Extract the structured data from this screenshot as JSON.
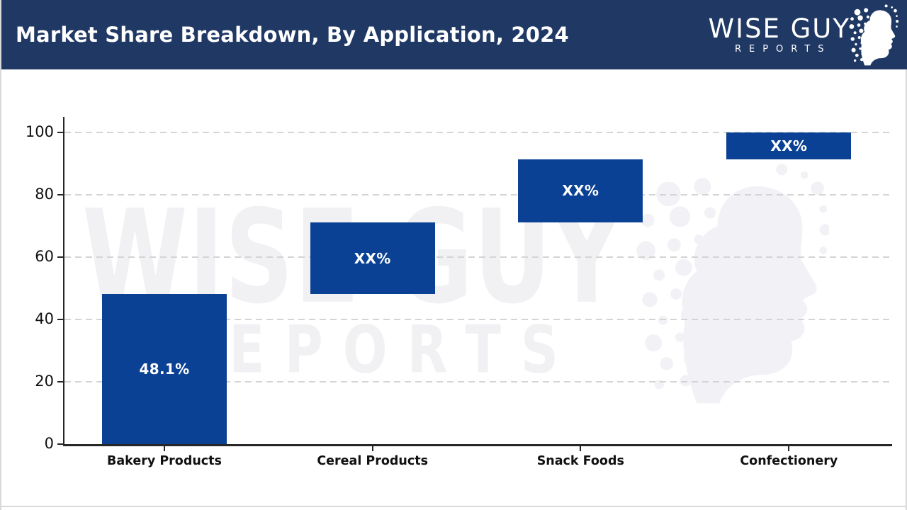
{
  "header": {
    "title": "Market Share Breakdown, By Application, 2024",
    "logo": {
      "line1": "WISE GUY",
      "line2": "REPORTS"
    }
  },
  "watermark": {
    "line1": "WISE GUY",
    "line2": "REPORTS"
  },
  "chart_data": {
    "type": "waterfall",
    "title": "Market Share Breakdown, By Application, 2024",
    "categories": [
      "Bakery Products",
      "Cereal Products",
      "Snack Foods",
      "Confectionery"
    ],
    "segments": [
      {
        "category": "Bakery Products",
        "start": 0,
        "end": 48.1,
        "label": "48.1%"
      },
      {
        "category": "Cereal Products",
        "start": 48.1,
        "end": 71.2,
        "label": "XX%"
      },
      {
        "category": "Snack Foods",
        "start": 71.2,
        "end": 91.4,
        "label": "XX%"
      },
      {
        "category": "Confectionery",
        "start": 91.4,
        "end": 100,
        "label": "XX%"
      }
    ],
    "yticks": [
      0,
      20,
      40,
      60,
      80,
      100
    ],
    "ylim": [
      0,
      105
    ],
    "xlabel": "",
    "ylabel": "",
    "grid": "horizontal-dashed",
    "legend": "none",
    "bar_color": "#0b4194"
  },
  "colors": {
    "header_bg": "#1f3864",
    "bar": "#0b4194",
    "bar_label": "#ffffff",
    "axis": "#262626",
    "grid": "#d4d4d4",
    "tick_label": "#111111",
    "watermark": "#f1f1f4",
    "page_border": "#d9d9d9"
  }
}
